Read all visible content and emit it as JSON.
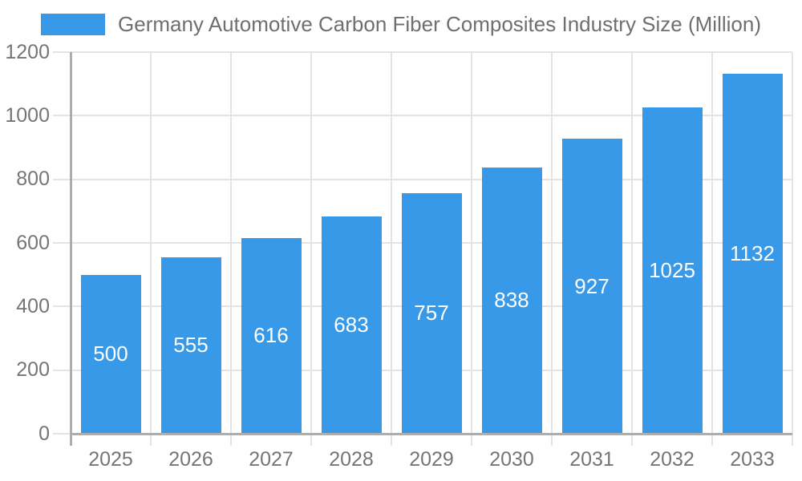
{
  "chart_data": {
    "type": "bar",
    "title": "Germany Automotive Carbon Fiber Composites Industry Size (Million)",
    "categories": [
      "2025",
      "2026",
      "2027",
      "2028",
      "2029",
      "2030",
      "2031",
      "2032",
      "2033"
    ],
    "values": [
      500,
      555,
      616,
      683,
      757,
      838,
      927,
      1025,
      1132
    ],
    "series": [
      {
        "name": "Germany Automotive Carbon Fiber Composites Industry Size (Million)",
        "values": [
          500,
          555,
          616,
          683,
          757,
          838,
          927,
          1025,
          1132
        ]
      }
    ],
    "xlabel": "",
    "ylabel": "",
    "ylim": [
      0,
      1200
    ],
    "yticks": [
      0,
      200,
      400,
      600,
      800,
      1000,
      1200
    ],
    "grid": true,
    "legend_position": "top-center",
    "bar_label_position": "inside-center",
    "colors": {
      "bar": "#3899E9",
      "bar_label_text": "#FFFFFF",
      "grid": "#E4E4E4",
      "axis": "#ADADAD",
      "tick_text": "#757575",
      "legend_text": "#6F6F6F",
      "background": "#FFFFFF"
    }
  }
}
